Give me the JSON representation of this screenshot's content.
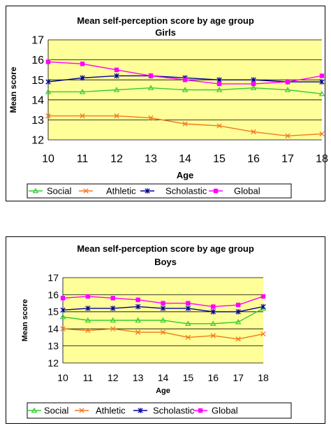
{
  "chart_data": [
    {
      "type": "line",
      "title": "Mean self-perception score by age group",
      "subtitle": "Girls",
      "xlabel": "Age",
      "ylabel": "Mean score",
      "categories": [
        "10",
        "11",
        "12",
        "13",
        "14",
        "15",
        "16",
        "17",
        "18"
      ],
      "ylim": [
        12,
        17
      ],
      "yticks": [
        "12",
        "13",
        "14",
        "15",
        "16",
        "17"
      ],
      "grid": true,
      "plot_background": "#ffff99",
      "legend_position": "bottom",
      "series": [
        {
          "name": "Social",
          "color": "#33cc33",
          "marker": "triangle",
          "values": [
            14.4,
            14.4,
            14.5,
            14.6,
            14.5,
            14.5,
            14.6,
            14.5,
            14.3
          ]
        },
        {
          "name": "Athletic",
          "color": "#f07820",
          "marker": "x",
          "values": [
            13.2,
            13.2,
            13.2,
            13.1,
            12.8,
            12.7,
            12.4,
            12.2,
            12.3
          ]
        },
        {
          "name": "Scholastic",
          "color": "#000099",
          "marker": "star",
          "values": [
            14.9,
            15.1,
            15.2,
            15.2,
            15.1,
            15.0,
            15.0,
            14.9,
            14.9
          ]
        },
        {
          "name": "Global",
          "color": "#ff00ff",
          "marker": "square",
          "values": [
            15.9,
            15.8,
            15.5,
            15.2,
            15.0,
            14.8,
            14.8,
            14.9,
            15.2
          ]
        }
      ]
    },
    {
      "type": "line",
      "title": "Mean self-perception score by age group",
      "subtitle": "Boys",
      "xlabel": "Age",
      "ylabel": "Mean score",
      "categories": [
        "10",
        "11",
        "12",
        "13",
        "14",
        "15",
        "16",
        "17",
        "18"
      ],
      "ylim": [
        12,
        17
      ],
      "yticks": [
        "12",
        "13",
        "14",
        "15",
        "16",
        "17"
      ],
      "grid": true,
      "plot_background": "#ffff99",
      "legend_position": "bottom",
      "series": [
        {
          "name": "Social",
          "color": "#33cc33",
          "marker": "triangle",
          "values": [
            14.7,
            14.5,
            14.5,
            14.5,
            14.5,
            14.3,
            14.3,
            14.4,
            15.2
          ]
        },
        {
          "name": "Athletic",
          "color": "#f07820",
          "marker": "x",
          "values": [
            14.0,
            13.9,
            14.0,
            13.8,
            13.8,
            13.5,
            13.6,
            13.4,
            13.7
          ]
        },
        {
          "name": "Scholastic",
          "color": "#000099",
          "marker": "star",
          "values": [
            15.1,
            15.2,
            15.2,
            15.3,
            15.2,
            15.2,
            15.0,
            15.0,
            15.3
          ]
        },
        {
          "name": "Global",
          "color": "#ff00ff",
          "marker": "square",
          "values": [
            15.8,
            15.9,
            15.8,
            15.7,
            15.5,
            15.5,
            15.3,
            15.4,
            15.9
          ]
        }
      ]
    }
  ]
}
